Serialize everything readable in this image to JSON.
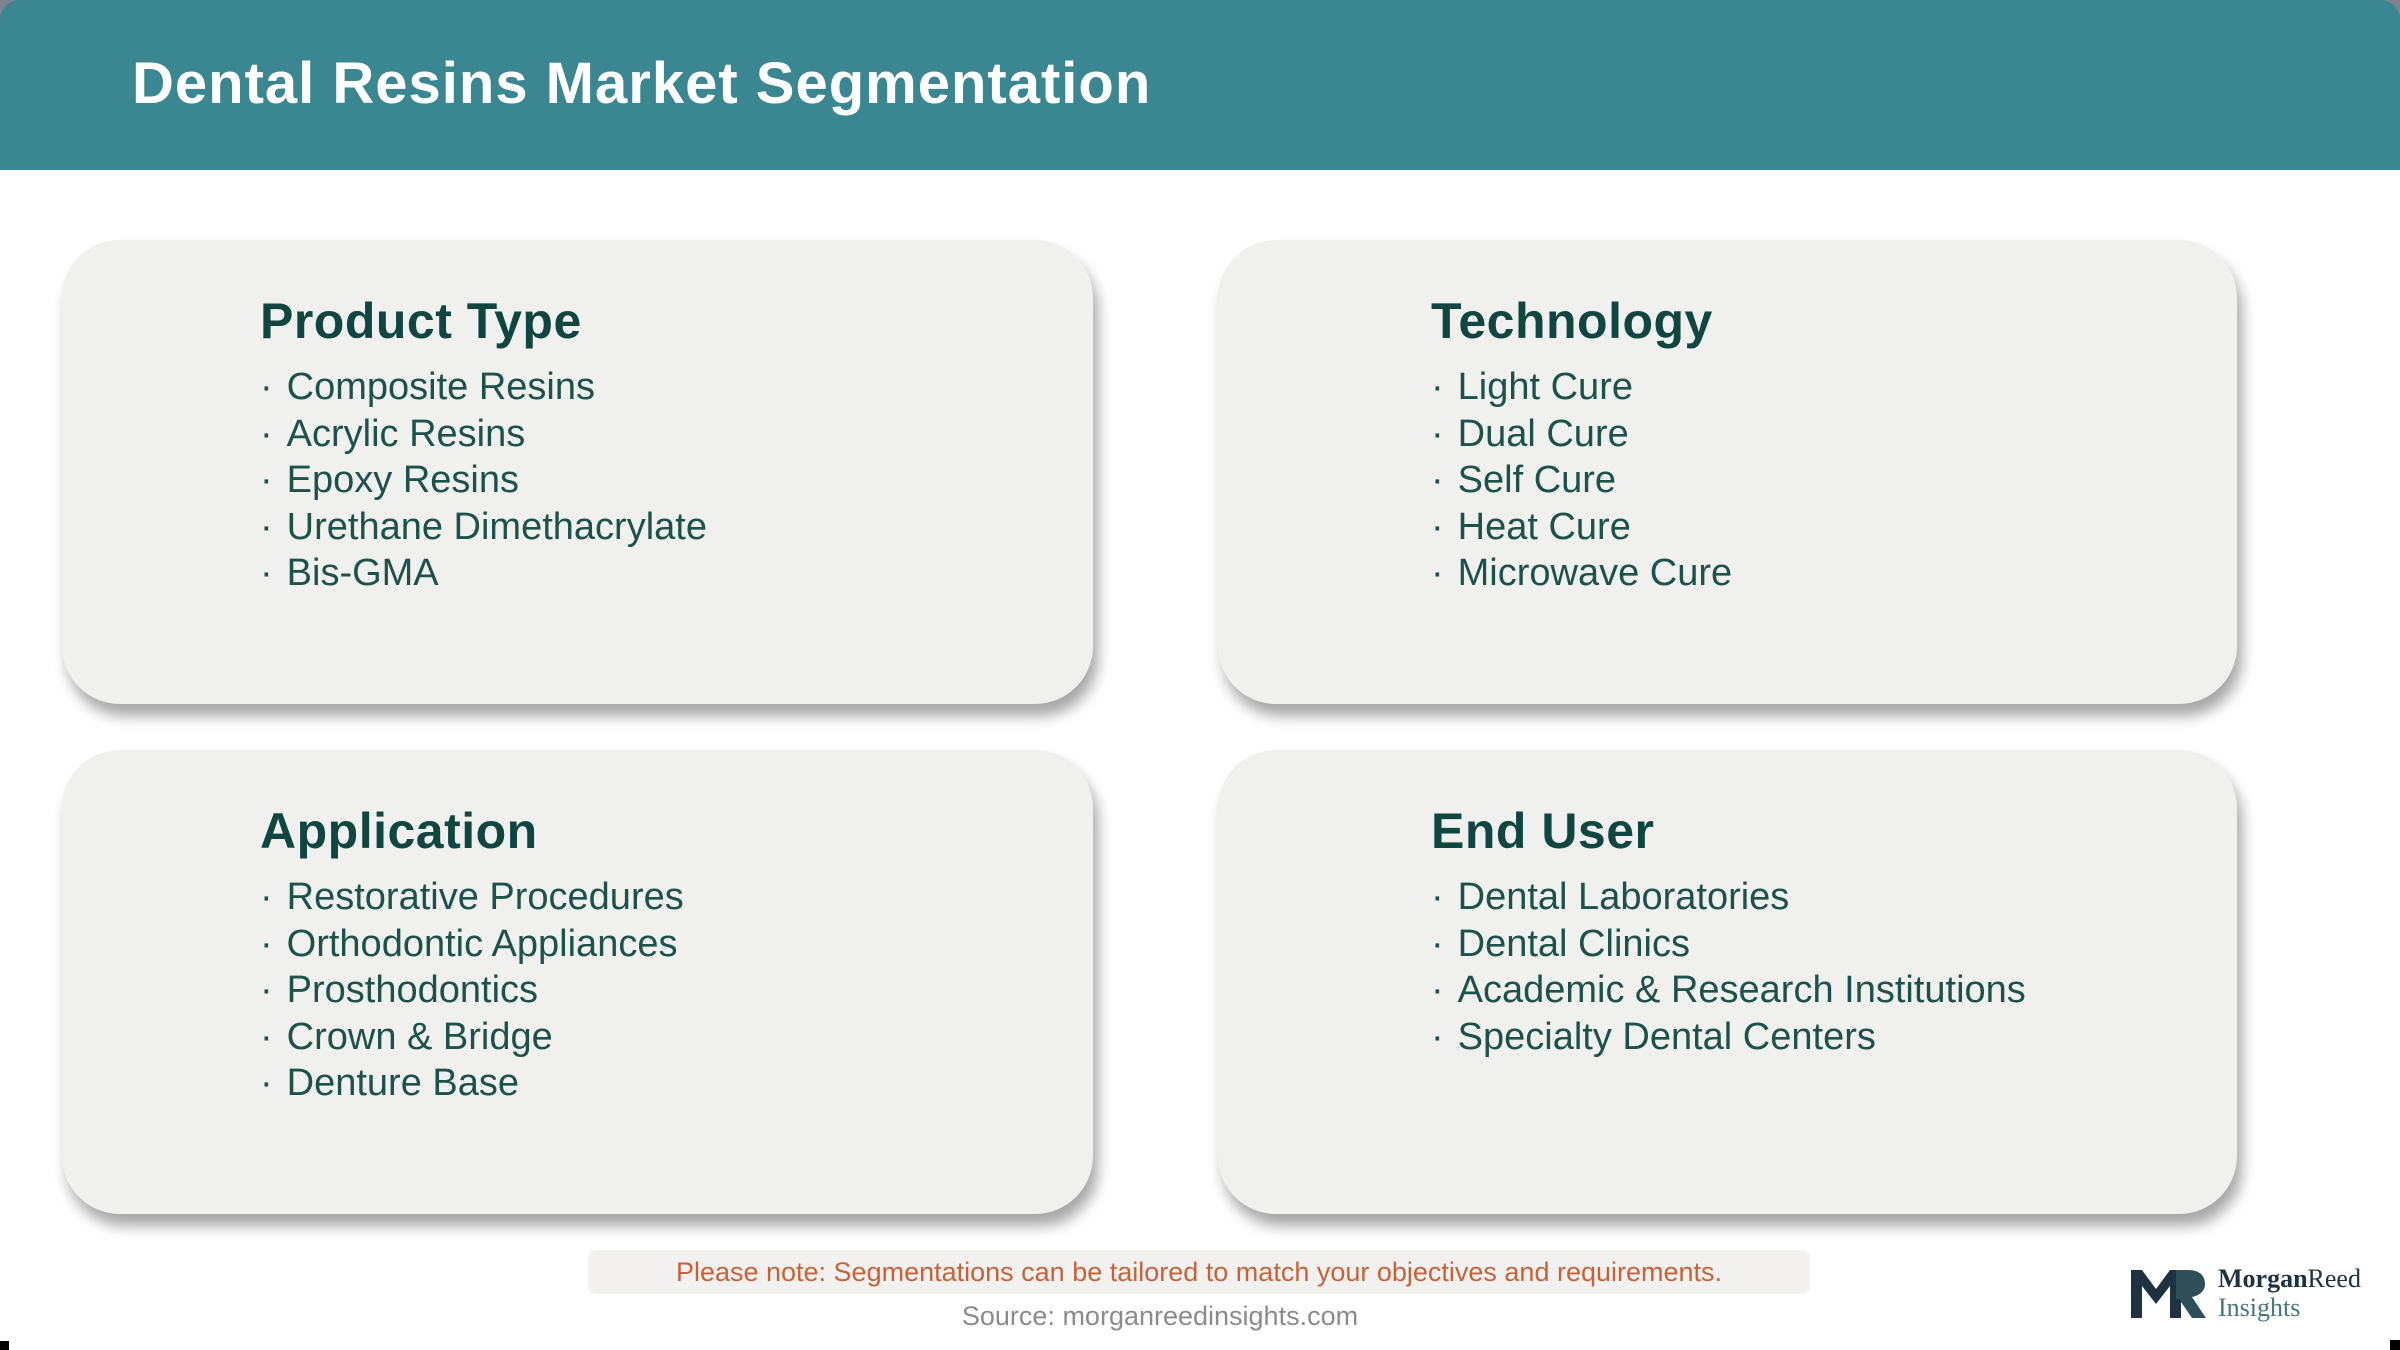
{
  "slide": {
    "title": "Dental Resins Market Segmentation",
    "segments": [
      {
        "title": "Product Type",
        "items": [
          "Composite Resins",
          "Acrylic Resins",
          "Epoxy Resins",
          "Urethane Dimethacrylate",
          "Bis-GMA"
        ]
      },
      {
        "title": "Technology",
        "items": [
          "Light Cure",
          "Dual Cure",
          "Self Cure",
          "Heat Cure",
          "Microwave Cure"
        ]
      },
      {
        "title": "Application",
        "items": [
          "Restorative Procedures",
          "Orthodontic Appliances",
          "Prosthodontics",
          "Crown & Bridge",
          "Denture Base"
        ]
      },
      {
        "title": "End User",
        "items": [
          "Dental Laboratories",
          "Dental Clinics",
          "Academic & Research Institutions",
          "Specialty Dental Centers"
        ]
      }
    ],
    "note": "Please note: Segmentations can be tailored to match your objectives and requirements.",
    "source": "Source: morganreedinsights.com"
  },
  "logo": {
    "monogram": "MR",
    "brand_bold": "Morgan",
    "brand_regular": "Reed",
    "brand_sub": "Insights"
  },
  "colors": {
    "header_bg": "#3a8691",
    "header_text": "#ffffff",
    "card_bg": "#f0f0ee",
    "heading_text": "#0f463f",
    "item_text": "#1c524a",
    "note_text": "#c66239",
    "note_bg": "#f2f1ef",
    "source_text": "#8b8b8b",
    "logo_dark": "#1f3240",
    "logo_teal": "#2c4f58",
    "logo_teal_text": "#45767a"
  }
}
